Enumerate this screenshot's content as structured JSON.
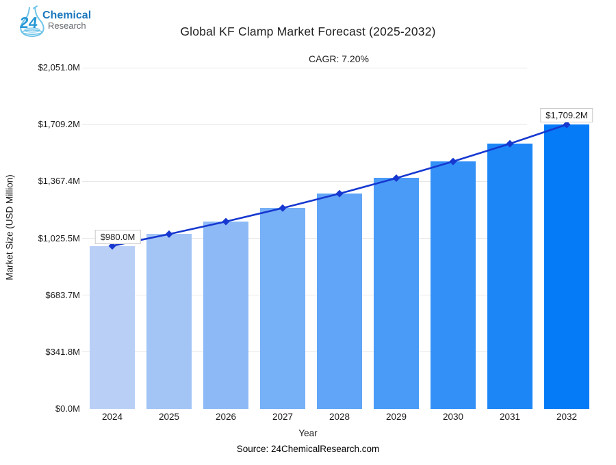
{
  "header": {
    "logo": {
      "number": "24",
      "line1": "Chemical",
      "line2": "Research"
    }
  },
  "chart_data": {
    "type": "bar",
    "title": "Global KF Clamp Market Forecast (2025-2032)",
    "subtitle": "CAGR: 7.20%",
    "xlabel": "Year",
    "ylabel": "Market Size (USD Million)",
    "categories": [
      "2024",
      "2025",
      "2026",
      "2027",
      "2028",
      "2029",
      "2030",
      "2031",
      "2032"
    ],
    "series": [
      {
        "name": "Market Size (USD Million)",
        "values": [
          980.0,
          1050.6,
          1126.2,
          1207.3,
          1294.2,
          1387.4,
          1487.3,
          1594.4,
          1709.2
        ]
      }
    ],
    "ylim": [
      0,
      2051.0
    ],
    "yticks": [
      {
        "value": 0,
        "label": "$0.0M"
      },
      {
        "value": 341.8,
        "label": "$341.8M"
      },
      {
        "value": 683.7,
        "label": "$683.7M"
      },
      {
        "value": 1025.5,
        "label": "$1,025.5M"
      },
      {
        "value": 1367.4,
        "label": "$1,367.4M"
      },
      {
        "value": 1709.2,
        "label": "$1,709.2M"
      },
      {
        "value": 2051.0,
        "label": "$2,051.0M"
      }
    ],
    "grid": "horizontal",
    "legend": "none",
    "annotations": [
      {
        "index": 0,
        "label": "$980.0M"
      },
      {
        "index": 8,
        "label": "$1,709.2M"
      }
    ],
    "colors": {
      "bars": [
        "#BACFF6",
        "#A3C5F6",
        "#8DBAF6",
        "#76B0F7",
        "#60A5F7",
        "#499BF7",
        "#3390F7",
        "#1C86F7",
        "#067BF7"
      ],
      "line": "#1638D0",
      "grid": "#E7E7E7",
      "annotation_border": "#C9C9C9"
    }
  },
  "footer": {
    "source": "Source: 24ChemicalResearch.com"
  }
}
